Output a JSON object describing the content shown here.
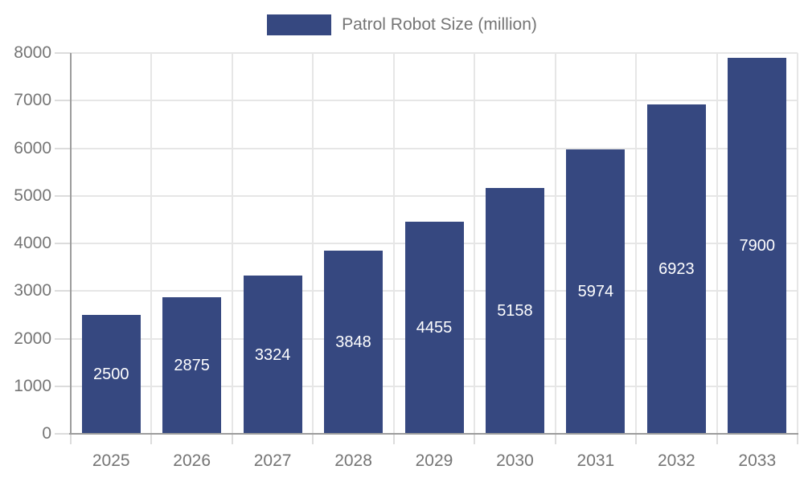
{
  "legend": {
    "label": "Patrol Robot Size (million)"
  },
  "chart_data": {
    "type": "bar",
    "title": "Patrol Robot Size (million)",
    "series_name": "Patrol Robot Size (million)",
    "categories": [
      "2025",
      "2026",
      "2027",
      "2028",
      "2029",
      "2030",
      "2031",
      "2032",
      "2033"
    ],
    "values": [
      2500,
      2875,
      3324,
      3848,
      4455,
      5158,
      5974,
      6923,
      7900
    ],
    "xlabel": "",
    "ylabel": "",
    "ylim": [
      0,
      8000
    ],
    "y_ticks": [
      0,
      1000,
      2000,
      3000,
      4000,
      5000,
      6000,
      7000,
      8000
    ],
    "grid": true,
    "legend_position": "top-center",
    "value_labels": "inside-center"
  },
  "colors": {
    "bar": "#364880",
    "bar_label": "#ffffff",
    "axis_line": "#9c9c9c",
    "gridline": "#e6e6e6",
    "tick": "#dcdcdc",
    "text": "#757575",
    "background": "#ffffff"
  }
}
